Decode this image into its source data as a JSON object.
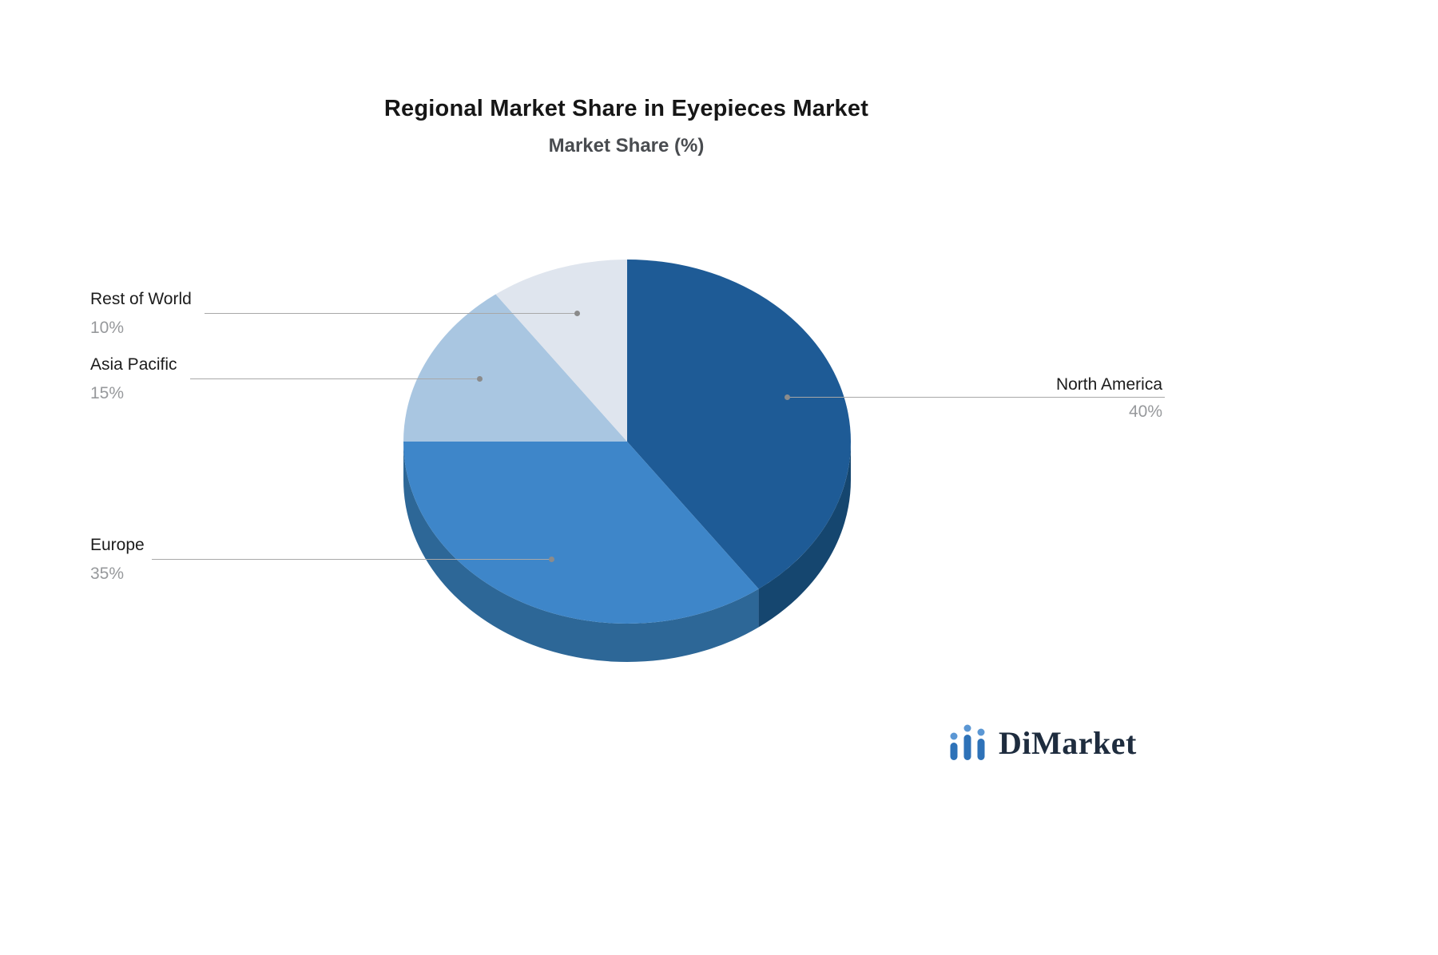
{
  "title": "Regional Market Share in Eyepieces Market",
  "subtitle": "Market Share (%)",
  "chart_data": {
    "type": "pie",
    "title": "Regional Market Share in Eyepieces Market",
    "subtitle": "Market Share (%)",
    "unit": "%",
    "effect": "3d",
    "start_angle_deg": 0,
    "direction": "clockwise",
    "legend_position": "callout-labels",
    "slices": [
      {
        "label": "North America",
        "value": 40,
        "display": "40%",
        "color": "#1e5b96",
        "side_color": "#15466f"
      },
      {
        "label": "Europe",
        "value": 35,
        "display": "35%",
        "color": "#3e86c9",
        "side_color": "#2d6797"
      },
      {
        "label": "Asia Pacific",
        "value": 15,
        "display": "15%",
        "color": "#a9c6e1",
        "side_color": "#8aa9c8"
      },
      {
        "label": "Rest of World",
        "value": 10,
        "display": "10%",
        "color": "#dfe5ee",
        "side_color": "#c0c9d6"
      }
    ]
  },
  "brand": {
    "name": "DiMarket",
    "icon": "bar-chart-logo-icon",
    "text_color": "#1e2c3e",
    "icon_color": "#2e72b8"
  }
}
